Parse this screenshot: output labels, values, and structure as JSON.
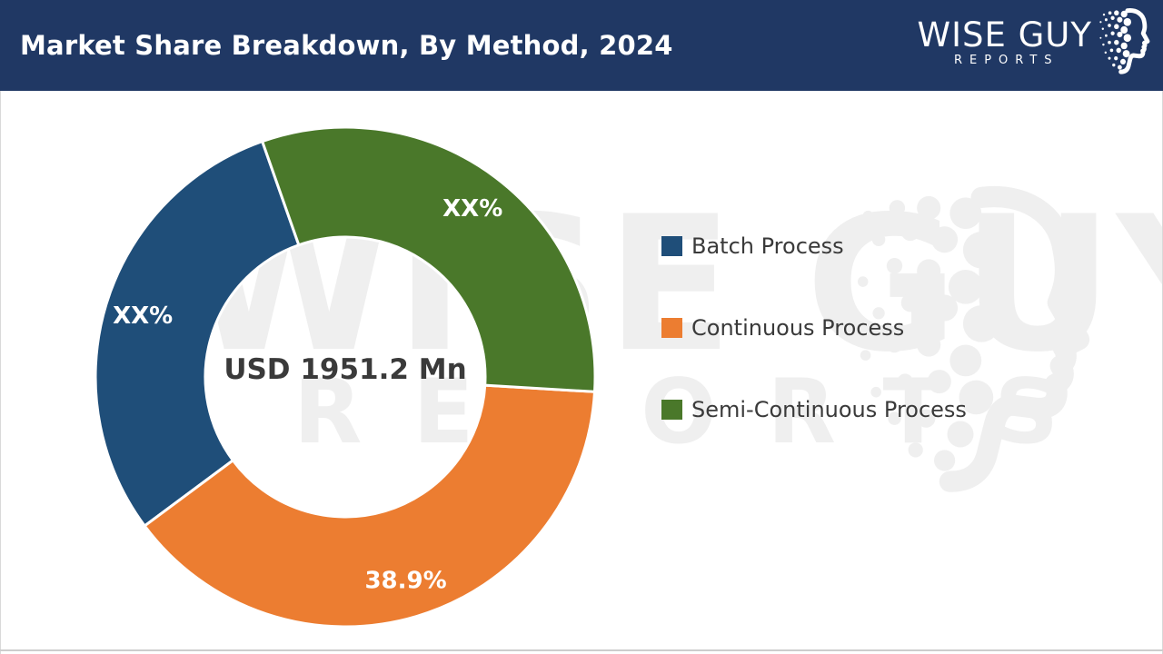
{
  "header": {
    "title": "Market Share Breakdown, By Method, 2024",
    "background_color": "#203864",
    "logo": {
      "line1": "WISE GUY",
      "line2": "REPORTS"
    }
  },
  "watermark": {
    "line1": "WISE GUY",
    "line2": "REPORTS",
    "color": "#efefef"
  },
  "chart_data": {
    "type": "pie",
    "subtype": "donut",
    "title": "Market Share Breakdown, By Method, 2024",
    "center_label": "USD 1951.2 Mn",
    "legend_position": "right",
    "text_color": "#3a3a3a",
    "label_color": "#ffffff",
    "segments": [
      {
        "name": "Batch Process",
        "label": "XX%",
        "percent": 29.8,
        "color": "#1F4E79",
        "start_deg": 233.4,
        "end_deg": 340.6
      },
      {
        "name": "Continuous Process",
        "label": "38.9%",
        "percent": 38.9,
        "color": "#EC7D31",
        "start_deg": 93.4,
        "end_deg": 233.4
      },
      {
        "name": "Semi-Continuous Process",
        "label": "XX%",
        "percent": 31.3,
        "color": "#4A782A",
        "start_deg": -19.4,
        "end_deg": 93.4
      }
    ]
  }
}
